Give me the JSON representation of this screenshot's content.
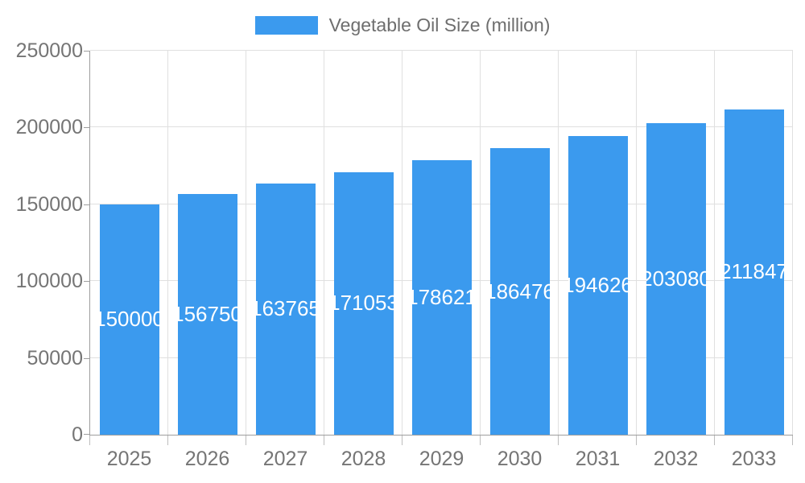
{
  "legend": {
    "label": "Vegetable Oil Size (million)"
  },
  "chart_data": {
    "type": "bar",
    "title": "Vegetable Oil Size (million)",
    "series_name": "Vegetable Oil Size (million)",
    "categories": [
      "2025",
      "2026",
      "2027",
      "2028",
      "2029",
      "2030",
      "2031",
      "2032",
      "2033"
    ],
    "values": [
      150000,
      156750,
      163765,
      171053,
      178621,
      186476,
      194626,
      203080,
      211847
    ],
    "bar_labels": [
      "150000",
      "156750",
      "163765",
      "171053",
      "178621",
      "186476",
      "194626",
      "203080",
      "211847"
    ],
    "xlabel": "",
    "ylabel": "",
    "ylim": [
      0,
      250000
    ],
    "yticks": [
      0,
      50000,
      100000,
      150000,
      200000,
      250000
    ],
    "ytick_labels": [
      "0",
      "50000",
      "100000",
      "150000",
      "200000",
      "250000"
    ],
    "grid": true,
    "legend_position": "top",
    "colors": {
      "bar": "#3b9aee",
      "bar_label_text": "#ffffff",
      "axis_text": "#757575",
      "legend_text": "#6e6e6e",
      "axis_line": "#9e9e9e",
      "gridline": "#e0e0e0"
    }
  }
}
